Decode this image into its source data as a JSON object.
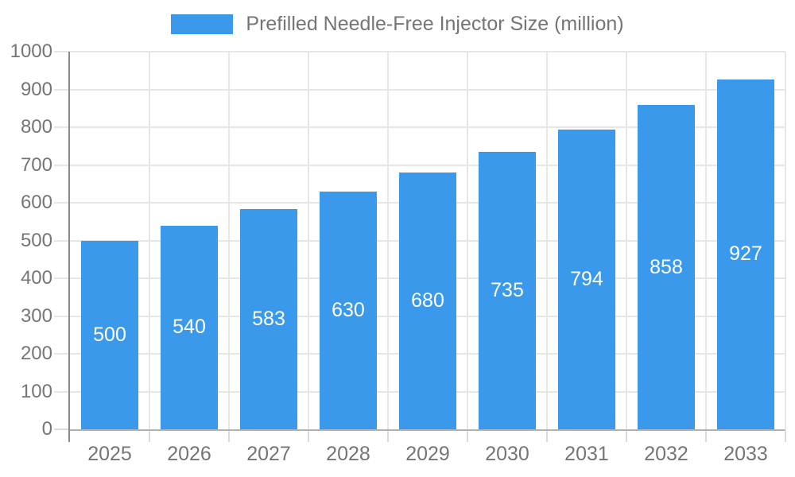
{
  "chart_data": {
    "type": "bar",
    "series_name": "Prefilled Needle-Free Injector Size (million)",
    "categories": [
      "2025",
      "2026",
      "2027",
      "2028",
      "2029",
      "2030",
      "2031",
      "2032",
      "2033"
    ],
    "values": [
      500,
      540,
      583,
      630,
      680,
      735,
      794,
      858,
      927
    ],
    "title": "",
    "xlabel": "",
    "ylabel": "",
    "ylim": [
      0,
      1000
    ],
    "ytick_step": 100,
    "ytick_labels": [
      "0",
      "100",
      "200",
      "300",
      "400",
      "500",
      "600",
      "700",
      "800",
      "900",
      "1000"
    ],
    "grid": true,
    "legend_position": "top-center",
    "value_label_position": "inside-center",
    "colors": {
      "bar": "#3B99EC",
      "gridline": "#E6E6E6",
      "tick": "#DBDBDB",
      "axis_label_text": "#757575",
      "legend_text": "#757575",
      "value_label_text": "#FFFFFF",
      "y_axis_line": "#8A8A8A",
      "x_axis_line": "#B3B3B3",
      "background": "#FFFFFF"
    }
  }
}
